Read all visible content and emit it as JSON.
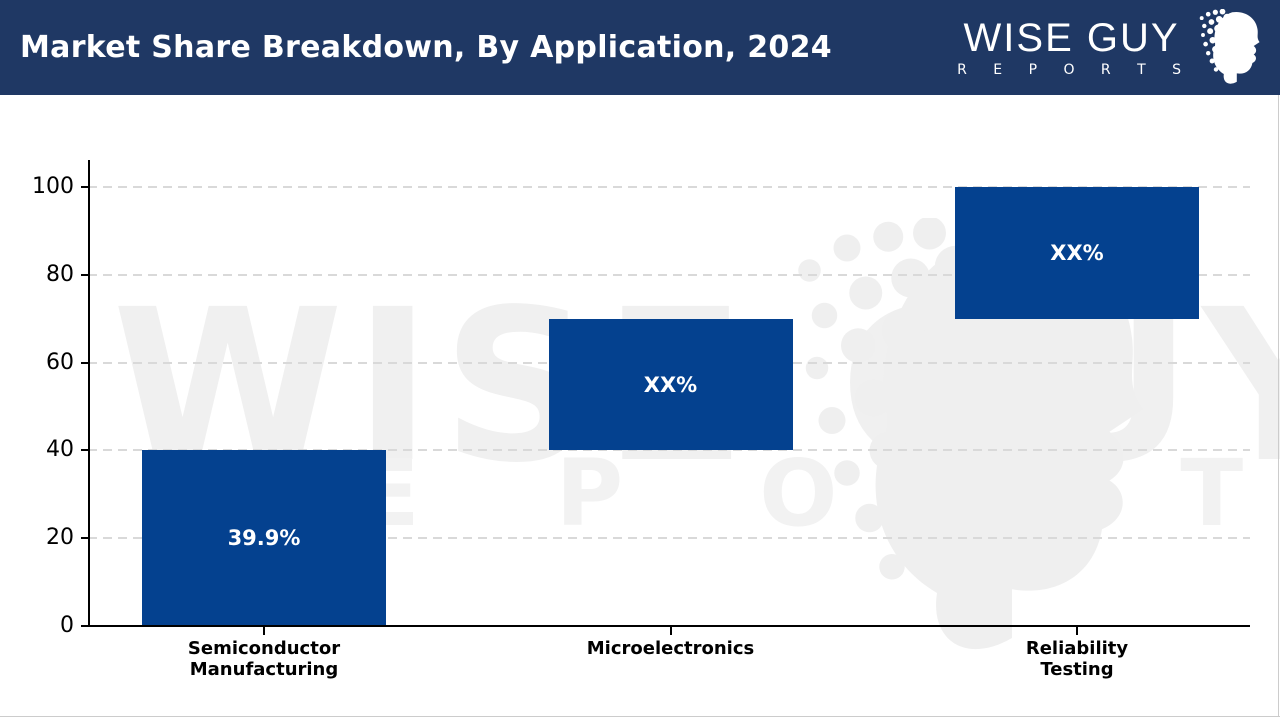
{
  "header": {
    "title": "Market Share Breakdown, By Application, 2024",
    "bg_color": "#1f3864",
    "logo": {
      "line1": "WISE GUY",
      "line2": "R E P O R T S"
    }
  },
  "watermark": {
    "line1": "WISE GUY",
    "line2": "R E P O R T S"
  },
  "chart_data": {
    "type": "bar",
    "subtype": "floating-segment-bars (waterfall style)",
    "title": "Market Share Breakdown, By Application, 2024",
    "categories": [
      [
        "Semiconductor",
        "Manufacturing"
      ],
      [
        "Microelectronics"
      ],
      [
        "Reliability",
        "Testing"
      ]
    ],
    "bars": [
      {
        "category": "Semiconductor Manufacturing",
        "start": 0,
        "end": 40,
        "label": "39.9%"
      },
      {
        "category": "Microelectronics",
        "start": 40,
        "end": 70,
        "label": "XX%"
      },
      {
        "category": "Reliability Testing",
        "start": 70,
        "end": 100,
        "label": "XX%"
      }
    ],
    "ylim": [
      0,
      100
    ],
    "yticks": [
      0,
      20,
      40,
      60,
      80,
      100
    ],
    "xlabel": "",
    "ylabel": "",
    "grid": "horizontal-dashed",
    "legend": "none",
    "bar_color": "#04418f",
    "bar_label_color": "#ffffff",
    "axis_color": "#000000",
    "gridline_color": "#d9d9d9"
  }
}
